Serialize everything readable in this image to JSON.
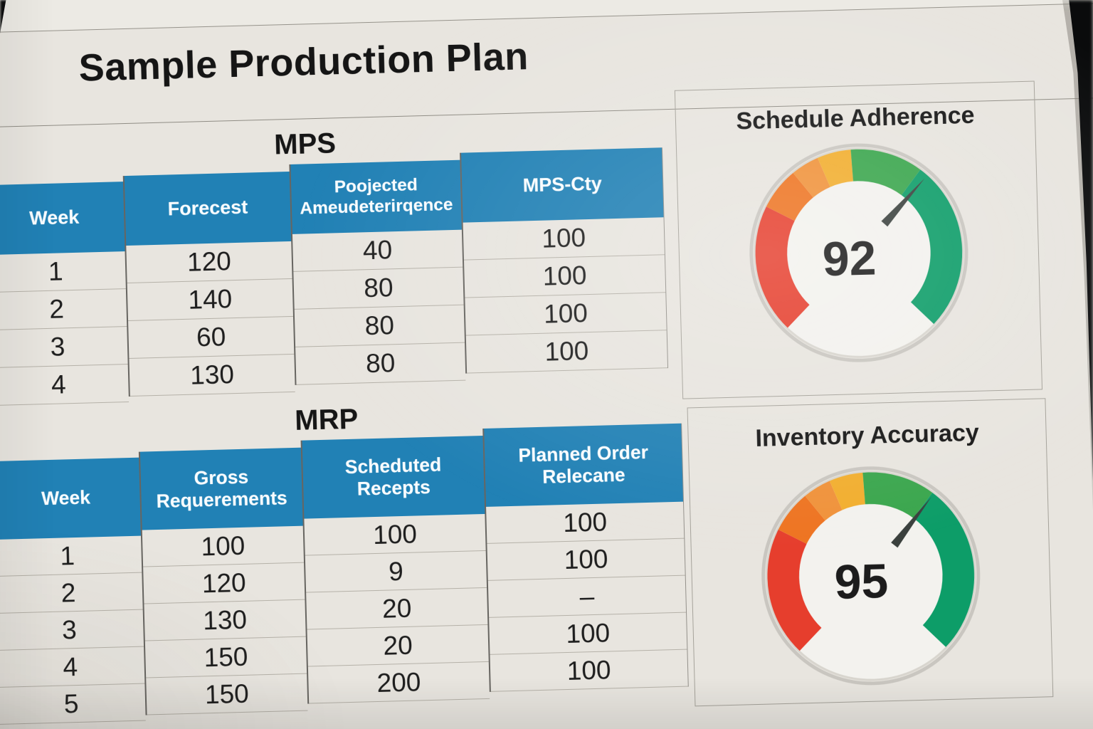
{
  "title": "Sample Production Plan",
  "tables": {
    "mps": {
      "caption": "MPS",
      "columns": [
        "Week",
        "Forecest",
        "Poojected Ameudeterirqence",
        "MPS-Cty"
      ],
      "rows": [
        [
          "1",
          "120",
          "40",
          "100"
        ],
        [
          "2",
          "140",
          "80",
          "100"
        ],
        [
          "3",
          "60",
          "80",
          "100"
        ],
        [
          "4",
          "130",
          "80",
          "100"
        ]
      ]
    },
    "mrp": {
      "caption": "MRP",
      "columns": [
        "Week",
        "Gross Requerements",
        "Scheduted Recepts",
        "Planned Order Relecane"
      ],
      "rows": [
        [
          "1",
          "100",
          "100",
          "100"
        ],
        [
          "2",
          "120",
          "9",
          "100"
        ],
        [
          "3",
          "130",
          "20",
          "–"
        ],
        [
          "4",
          "150",
          "20",
          "100"
        ],
        [
          "5",
          "150",
          "200",
          "100"
        ]
      ]
    }
  },
  "gauges": [
    {
      "title": "Schedule Adherence",
      "value": "92",
      "needle_deg": 47
    },
    {
      "title": "Inventory Accuracy",
      "value": "95",
      "needle_deg": 51
    }
  ],
  "gauge_segments": [
    {
      "color": "#e63e2d",
      "from": 225,
      "to": 152
    },
    {
      "color": "#ee7421",
      "from": 152,
      "to": 128
    },
    {
      "color": "#f0923a",
      "from": 128,
      "to": 112
    },
    {
      "color": "#f2ae2e",
      "from": 112,
      "to": 93
    },
    {
      "color": "#3aa64d",
      "from": 93,
      "to": 52
    },
    {
      "color": "#0d9d68",
      "from": 52,
      "to": -45
    }
  ],
  "colors": {
    "background": "#e8e5df",
    "header_blue": "#2181b5",
    "gauge_face": "#f3f2ee",
    "needle": "#3a403d",
    "red": "#e63e2d",
    "orange": "#ee7421",
    "amber": "#f2ae2e",
    "green": "#3aa64d",
    "teal": "#0d9d68"
  },
  "chart_data": [
    {
      "type": "gauge",
      "title": "Schedule Adherence",
      "value": 92,
      "range": [
        0,
        100
      ],
      "segments": [
        "red",
        "orange",
        "amber",
        "green"
      ],
      "legend_position": "none"
    },
    {
      "type": "gauge",
      "title": "Inventory Accuracy",
      "value": 95,
      "range": [
        0,
        100
      ],
      "segments": [
        "red",
        "orange",
        "amber",
        "green"
      ],
      "legend_position": "none"
    },
    {
      "type": "table",
      "title": "MPS",
      "columns": [
        "Week",
        "Forecest",
        "Poojected Ameudeterirqence",
        "MPS-Cty"
      ],
      "rows": [
        [
          1,
          120,
          40,
          100
        ],
        [
          2,
          140,
          80,
          100
        ],
        [
          3,
          60,
          80,
          100
        ],
        [
          4,
          130,
          80,
          100
        ]
      ]
    },
    {
      "type": "table",
      "title": "MRP",
      "columns": [
        "Week",
        "Gross Requerements",
        "Scheduted Recepts",
        "Planned Order Relecane"
      ],
      "rows": [
        [
          1,
          100,
          100,
          100
        ],
        [
          2,
          120,
          9,
          100
        ],
        [
          3,
          130,
          20,
          "–"
        ],
        [
          4,
          150,
          20,
          100
        ],
        [
          5,
          150,
          200,
          100
        ]
      ]
    }
  ]
}
